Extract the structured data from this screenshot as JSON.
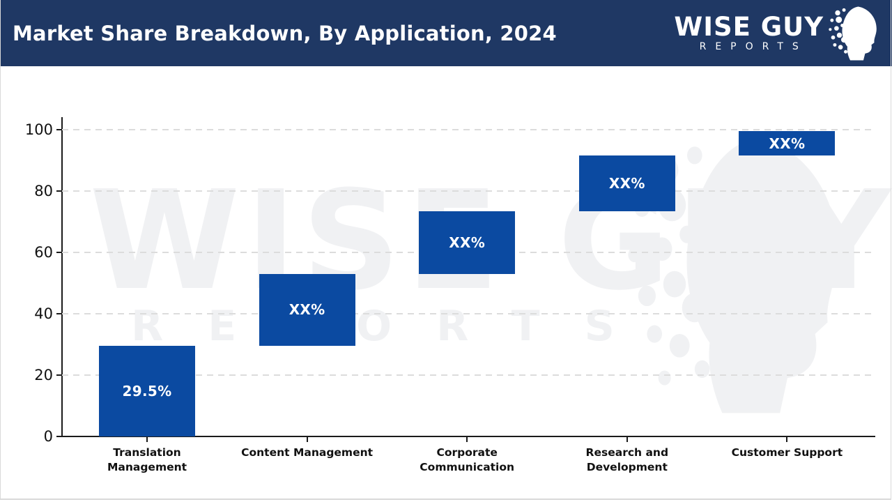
{
  "header": {
    "title": "Market Share Breakdown, By Application, 2024",
    "bg_color": "#1f3864",
    "logo": {
      "wordmark": "WISE GUY",
      "subtext": "REPORTS"
    }
  },
  "watermark": {
    "line1": "WISE GUY",
    "line2": "REPORTS"
  },
  "chart_data": {
    "type": "bar",
    "subtype": "waterfall",
    "title": "Market Share Breakdown, By Application, 2024",
    "categories": [
      "Translation\nManagement",
      "Content Management",
      "Corporate\nCommunication",
      "Research and\nDevelopment",
      "Customer Support"
    ],
    "segments": [
      {
        "category": "Translation Management",
        "start": 0,
        "end": 29.5,
        "label": "29.5%"
      },
      {
        "category": "Content Management",
        "start": 29.5,
        "end": 53,
        "label": "XX%"
      },
      {
        "category": "Corporate Communication",
        "start": 53,
        "end": 73.5,
        "label": "XX%"
      },
      {
        "category": "Research and Development",
        "start": 73.5,
        "end": 91.5,
        "label": "XX%"
      },
      {
        "category": "Customer Support",
        "start": 91.5,
        "end": 99.5,
        "label": "XX%"
      }
    ],
    "ylim": [
      0,
      100
    ],
    "yticks": [
      0,
      20,
      40,
      60,
      80,
      100
    ],
    "xlabel": "",
    "ylabel": "",
    "legend": "none",
    "grid": "horizontal-dashed",
    "bar_color": "#0b4aa1",
    "bar_label_color": "#ffffff",
    "axis_color": "#1a1a1a",
    "grid_color": "#dcdcdc",
    "watermark_color": "#f0f1f3"
  }
}
